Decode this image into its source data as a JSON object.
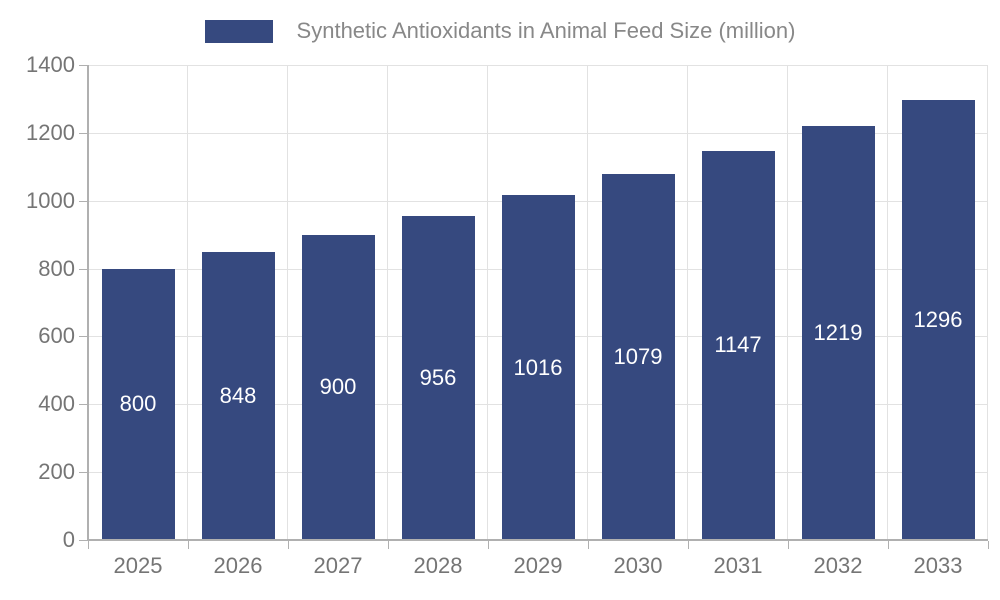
{
  "chart": {
    "legend": {
      "label": "Synthetic Antioxidants in Animal Feed Size (million)"
    }
  },
  "chart_data": {
    "type": "bar",
    "title": "Synthetic Antioxidants in Animal Feed Size (million)",
    "series_name": "Synthetic Antioxidants in Animal Feed Size (million)",
    "categories": [
      "2025",
      "2026",
      "2027",
      "2028",
      "2029",
      "2030",
      "2031",
      "2032",
      "2033"
    ],
    "values": [
      800,
      848,
      900,
      956,
      1016,
      1079,
      1147,
      1219,
      1296
    ],
    "xlabel": "",
    "ylabel": "",
    "ylim": [
      0,
      1400
    ],
    "yticks": [
      0,
      200,
      400,
      600,
      800,
      1000,
      1200,
      1400
    ],
    "grid": true,
    "legend_position": "top",
    "bar_labels_visible": true,
    "colors": {
      "bar": "#36497F",
      "bar_label": "#FFFFFF",
      "grid": "#E2E2E2",
      "axis": "#B0B0B0",
      "tick_text": "#757575",
      "legend_text": "#888888",
      "background": "#FFFFFF"
    }
  }
}
